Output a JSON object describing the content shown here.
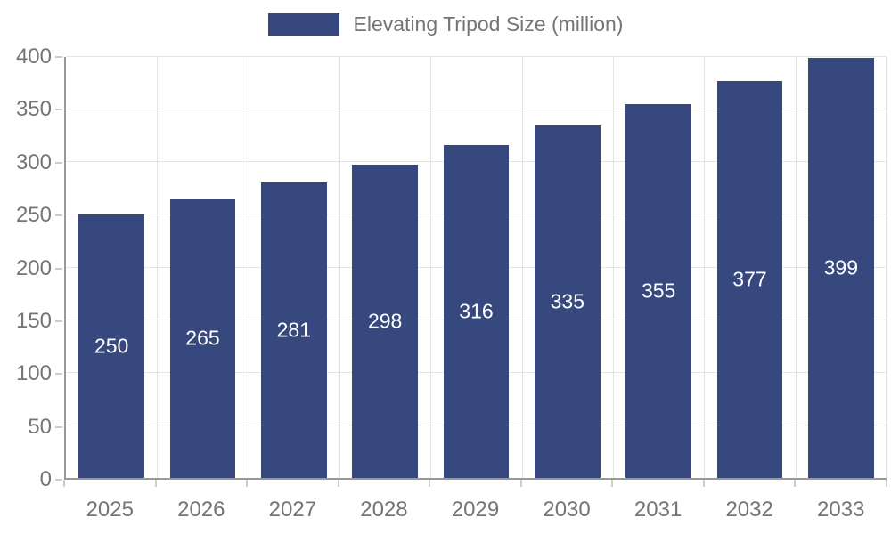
{
  "legend": {
    "label": "Elevating Tripod Size (million)"
  },
  "colors": {
    "bar": "#37487F",
    "axis": "#999999",
    "grid": "#E4E4E4",
    "tick": "#CCCCCC",
    "text": "#757575",
    "value_label": "#FFFFFF",
    "background": "#FFFFFF"
  },
  "chart_data": {
    "type": "bar",
    "title": "Elevating Tripod Size (million)",
    "categories": [
      "2025",
      "2026",
      "2027",
      "2028",
      "2029",
      "2030",
      "2031",
      "2032",
      "2033"
    ],
    "values": [
      250,
      265,
      281,
      298,
      316,
      335,
      355,
      377,
      399
    ],
    "series": [
      {
        "name": "Elevating Tripod Size (million)",
        "values": [
          250,
          265,
          281,
          298,
          316,
          335,
          355,
          377,
          399
        ]
      }
    ],
    "xlabel": "",
    "ylabel": "",
    "ylim": [
      0,
      400
    ],
    "ytick_step": 50,
    "yticks": [
      0,
      50,
      100,
      150,
      200,
      250,
      300,
      350,
      400
    ],
    "grid": true,
    "bar_labels_inside": true,
    "legend_position": "top-center"
  }
}
